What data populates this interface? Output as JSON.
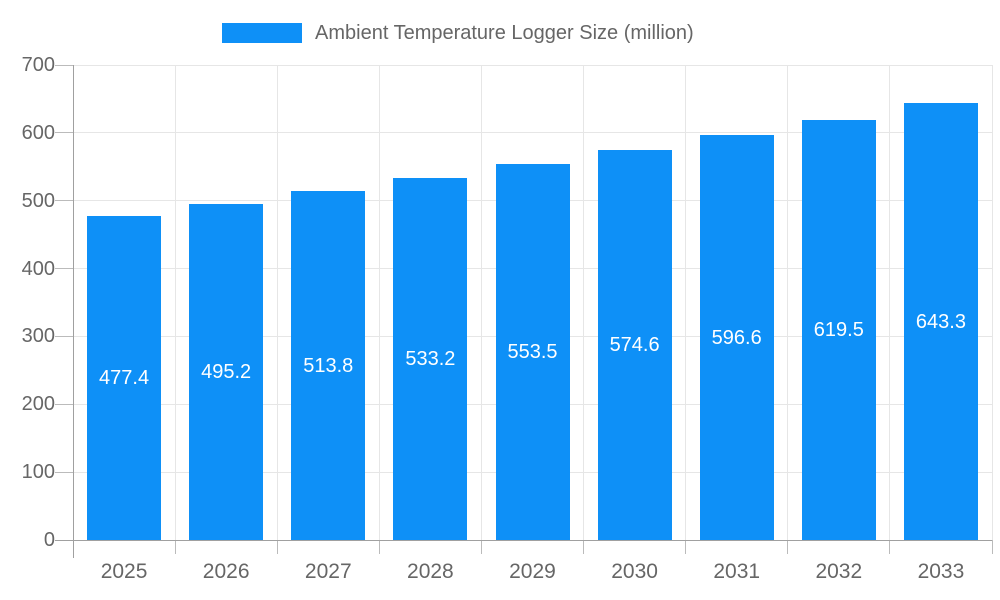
{
  "legend": {
    "label": "Ambient Temperature Logger Size (million)"
  },
  "colors": {
    "bar": "#0e90f7",
    "axis_line": "#a0a0a0",
    "grid_line": "#e6e6e6",
    "tick": "#bbbbbb",
    "axis_text": "#666666",
    "bar_label_text": "#ffffff",
    "background": "#ffffff"
  },
  "chart_data": {
    "type": "bar",
    "title": "Ambient Temperature Logger Size (million)",
    "categories": [
      "2025",
      "2026",
      "2027",
      "2028",
      "2029",
      "2030",
      "2031",
      "2032",
      "2033"
    ],
    "values": [
      477.4,
      495.2,
      513.8,
      533.2,
      553.5,
      574.6,
      596.6,
      619.5,
      643.3
    ],
    "xlabel": "",
    "ylabel": "",
    "ylim": [
      0,
      700
    ],
    "yticks": [
      0,
      100,
      200,
      300,
      400,
      500,
      600,
      700
    ],
    "grid": true,
    "legend_position": "top",
    "bar_label_position": "inside-center"
  }
}
